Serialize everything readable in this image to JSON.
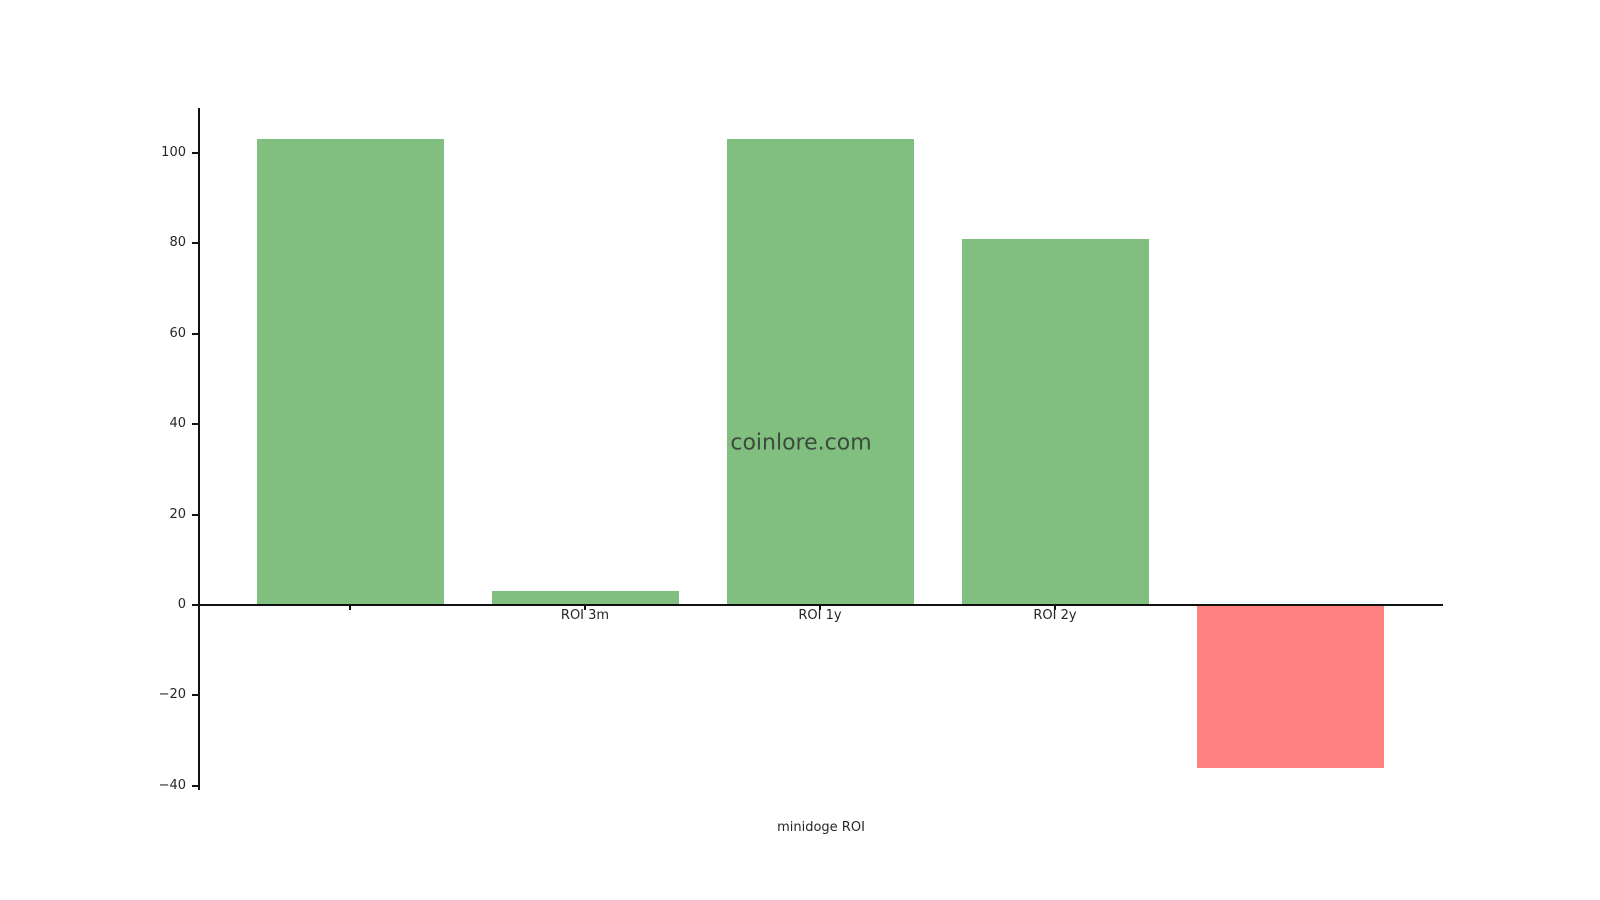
{
  "watermark": {
    "text": "coinlore.com",
    "color": "#2a2a2a"
  },
  "chart_data": {
    "type": "bar",
    "title": "",
    "xlabel": "minidoge ROI",
    "ylabel": "",
    "categories": [
      "",
      "ROI 3m",
      "ROI 1y",
      "ROI 2y",
      ""
    ],
    "values": [
      103,
      3,
      103,
      81,
      -36
    ],
    "positive_color": "#80bf80",
    "negative_color": "#ff8080",
    "axis_color": "#111111",
    "tick_text_color": "#262626",
    "y_ticks": [
      -40,
      -20,
      0,
      20,
      40,
      60,
      80,
      100
    ],
    "ylim": [
      -41,
      110
    ],
    "grid": false,
    "legend_position": "none",
    "notes": "first and last bars have no visible x label; red bar covers its tick label"
  }
}
